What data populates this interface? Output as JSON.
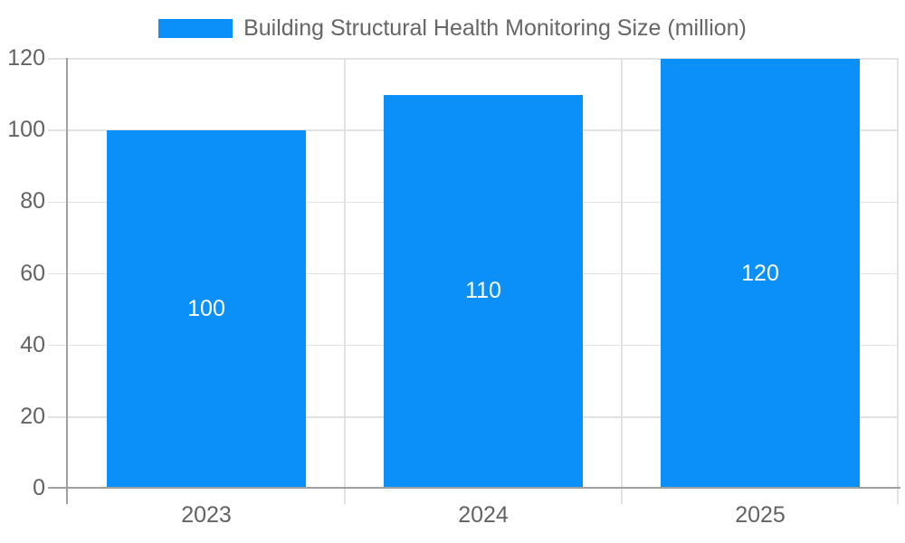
{
  "legend": {
    "series_label": "Building Structural Health Monitoring Size (million)"
  },
  "colors": {
    "bar": "#0b90fa",
    "bar_label": "#ffffff",
    "grid": "#e2e2e2",
    "axis_line": "#a0a0a0",
    "tick_label": "#636363",
    "legend_text": "#666666",
    "background": "#ffffff"
  },
  "chart_data": {
    "type": "bar",
    "title": "Building Structural Health Monitoring Size (million)",
    "categories": [
      "2023",
      "2024",
      "2025"
    ],
    "series": [
      {
        "name": "Building Structural Health Monitoring Size (million)",
        "values": [
          100,
          110,
          120
        ],
        "color": "#0b90fa"
      }
    ],
    "data_labels": [
      "100",
      "110",
      "120"
    ],
    "xlabel": "",
    "ylabel": "",
    "ylim": [
      0,
      120
    ],
    "yticks": [
      0,
      20,
      40,
      60,
      80,
      100,
      120
    ],
    "grid": true,
    "legend_position": "top",
    "data_label_position": "inside-center"
  }
}
